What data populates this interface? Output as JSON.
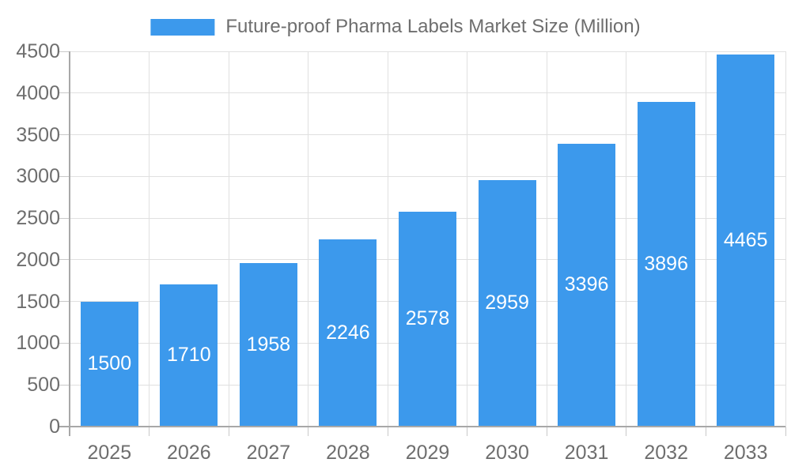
{
  "chart_data": {
    "type": "bar",
    "title": "Future-proof Pharma Labels Market Size (Million)",
    "categories": [
      "2025",
      "2026",
      "2027",
      "2028",
      "2029",
      "2030",
      "2031",
      "2032",
      "2033"
    ],
    "values": [
      1500,
      1710,
      1958,
      2246,
      2578,
      2959,
      3396,
      3896,
      4465
    ],
    "xlabel": "",
    "ylabel": "",
    "ylim": [
      0,
      4500
    ],
    "ytick_step": 500,
    "grid": true,
    "legend_position": "top-center",
    "value_label_position": "inside-center",
    "bar_color": "#3C99EC",
    "value_label_color": "#FFFFFF",
    "grid_color": "#E0E0E0",
    "tick_color": "#C9C9C9",
    "axis_color": "#A8A8A8",
    "tick_label_color": "#6E6E6E"
  }
}
